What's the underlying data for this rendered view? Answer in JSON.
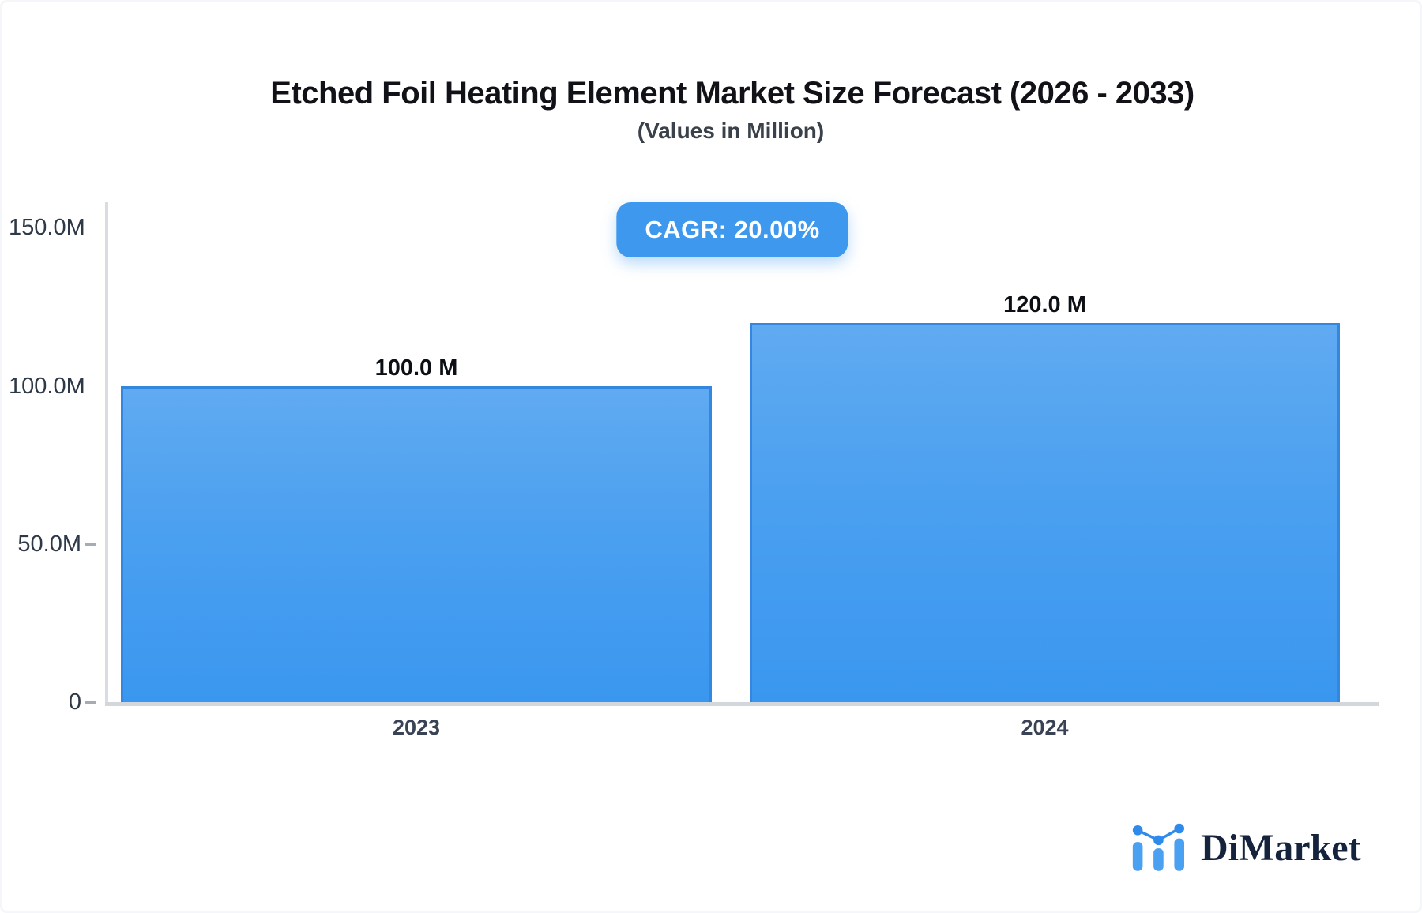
{
  "header": {
    "title": "Etched Foil Heating Element Market Size Forecast (2026 - 2033)",
    "subtitle": "(Values in Million)",
    "cagr_badge": "CAGR: 20.00%",
    "badge_color": "#3d98ee"
  },
  "chart_data": {
    "type": "bar",
    "title": "Etched Foil Heating Element Market Size Forecast (2026 - 2033)",
    "subtitle": "(Values in Million)",
    "unit": "Million",
    "cagr_percent": 20.0,
    "categories": [
      "2023",
      "2024"
    ],
    "values": [
      100.0,
      120.0
    ],
    "value_labels": [
      "100.0 M",
      "120.0 M"
    ],
    "ylim": [
      0,
      150
    ],
    "yticks": [
      0,
      50,
      100,
      150
    ],
    "ytick_labels": [
      "0",
      "50.0M",
      "100.0M",
      "150.0M"
    ],
    "grid": false,
    "legend": false,
    "bar_color_top": "#60aaf1",
    "bar_color_bottom": "#3a97ef",
    "bar_border_color": "#3387de",
    "axis_color": "#d3d6db"
  },
  "footer": {
    "logo_text": "DiMarket",
    "logo_icon": "bar-line-chart-icon",
    "logo_blue": "#4aa0f1",
    "logo_navy": "#16233d"
  }
}
